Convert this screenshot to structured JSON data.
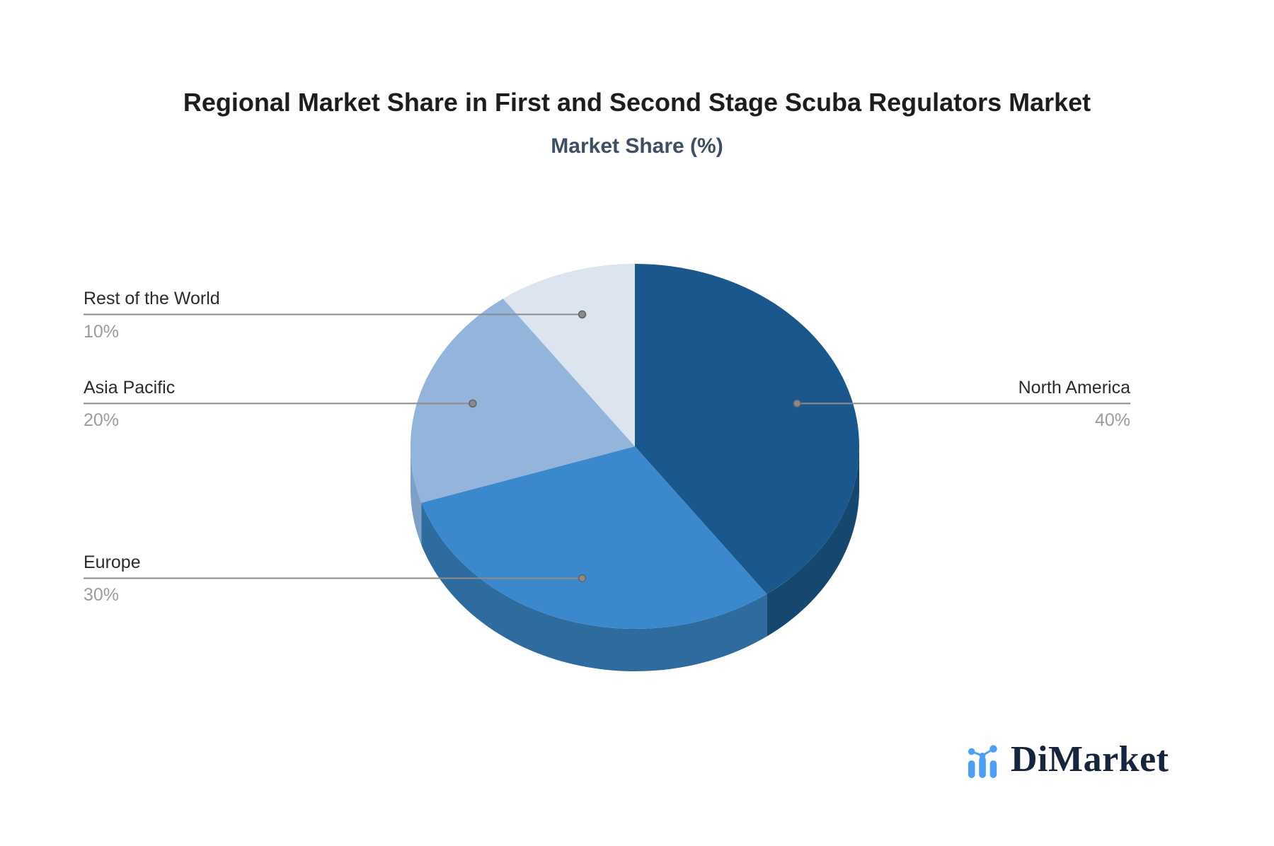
{
  "header": {
    "title": "Regional Market Share in First and Second Stage Scuba Regulators Market",
    "subtitle": "Market Share (%)"
  },
  "chart_data": {
    "type": "pie",
    "style": "3d",
    "title": "Regional Market Share in First and Second Stage Scuba Regulators Market",
    "subtitle": "Market Share (%)",
    "unit": "%",
    "start_angle_deg": 0,
    "direction": "clockwise",
    "legend_position": "callout-labels",
    "slices": [
      {
        "label": "North America",
        "value": 40,
        "display": "40%",
        "color": "#1A578C",
        "side_color": "#16486F"
      },
      {
        "label": "Europe",
        "value": 30,
        "display": "30%",
        "color": "#3B89CC",
        "side_color": "#2E6B9E"
      },
      {
        "label": "Asia Pacific",
        "value": 20,
        "display": "20%",
        "color": "#93B5DB",
        "side_color": "#7EA0C6"
      },
      {
        "label": "Rest of the World",
        "value": 10,
        "display": "10%",
        "color": "#DCE4EF",
        "side_color": "#C6CFDC"
      }
    ],
    "label_color": "#2b2b2b",
    "value_color": "#9b9b9b",
    "callout_line_color": "#8c8c8c"
  },
  "brand": {
    "name": "DiMarket",
    "icon": "bar-line-chart-icon",
    "icon_color": "#4C9FF5",
    "text_color": "#16243d"
  }
}
